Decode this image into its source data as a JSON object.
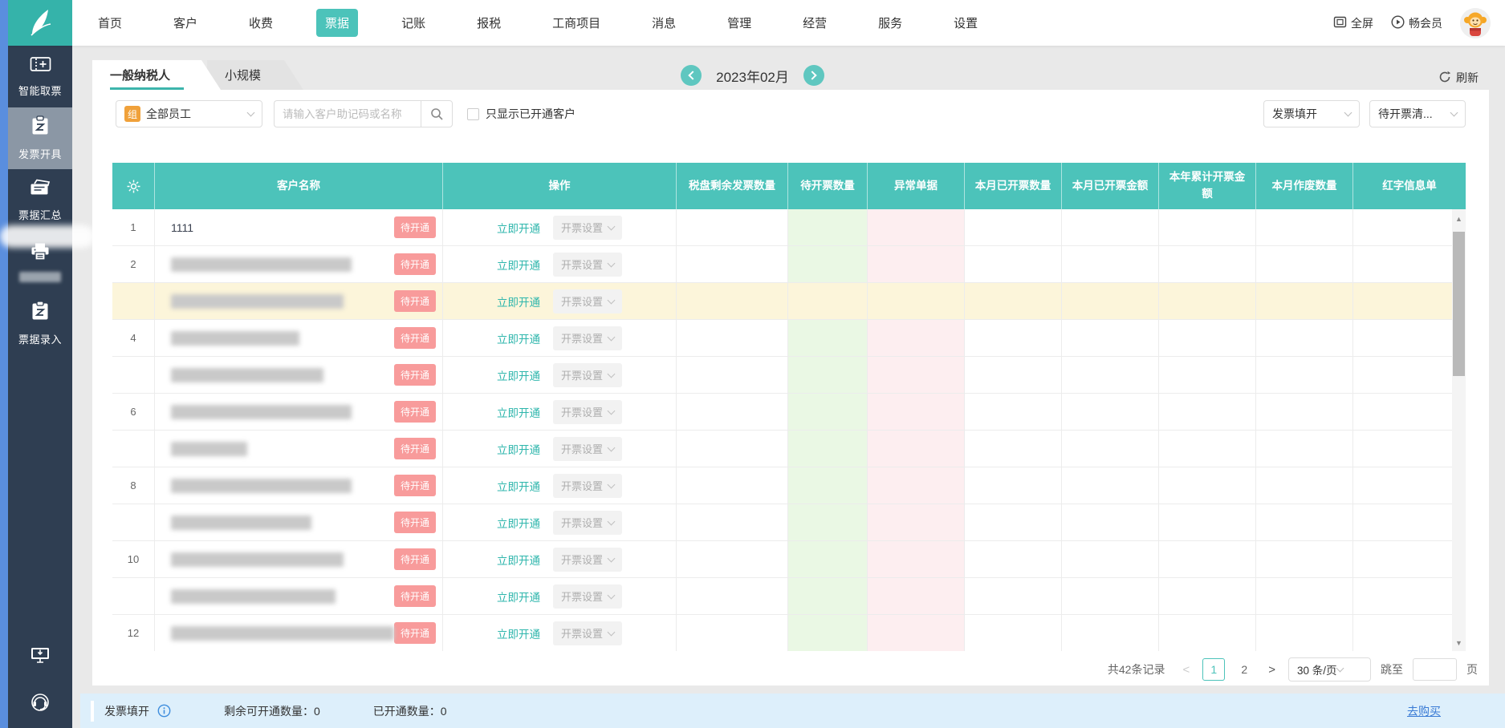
{
  "top_nav": {
    "items": [
      {
        "label": "首页"
      },
      {
        "label": "客户"
      },
      {
        "label": "收费"
      },
      {
        "label": "票据",
        "active": true
      },
      {
        "label": "记账"
      },
      {
        "label": "报税"
      },
      {
        "label": "工商项目"
      },
      {
        "label": "消息"
      },
      {
        "label": "管理"
      },
      {
        "label": "经营"
      },
      {
        "label": "服务"
      },
      {
        "label": "设置"
      }
    ],
    "fullscreen_label": "全屏",
    "member_label": "畅会员"
  },
  "sidebar": {
    "items": [
      {
        "label": "智能取票",
        "icon": "ticket-plus"
      },
      {
        "label": "发票开具",
        "icon": "invoice-clipboard",
        "active": true
      },
      {
        "label": "票据汇总",
        "icon": "bills-stack"
      },
      {
        "label": "",
        "icon": "printer",
        "redacted": true
      },
      {
        "label": "票据录入",
        "icon": "entry-clipboard"
      }
    ]
  },
  "tabs": {
    "general": "一般纳税人",
    "small": "小规模"
  },
  "period": {
    "label": "2023年02月"
  },
  "refresh_label": "刷新",
  "filters": {
    "employee_badge": "组",
    "employee_value": "全部员工",
    "search_placeholder": "请输入客户助记码或名称",
    "checkbox_label": "只显示已开通客户",
    "invoice_mode": "发票填开",
    "list_mode": "待开票清..."
  },
  "table": {
    "headers": [
      {
        "label": "客户名称"
      },
      {
        "label": "操作"
      },
      {
        "label": "税盘剩余发票数量"
      },
      {
        "label": "待开票数量"
      },
      {
        "label": "异常单据"
      },
      {
        "label": "本月已开票数量"
      },
      {
        "label": "本月已开票金额"
      },
      {
        "label": "本年累计开票金额"
      },
      {
        "label": "本月作废数量"
      },
      {
        "label": "红字信息单"
      }
    ],
    "badge_label": "待开通",
    "actions": {
      "open": "立即开通",
      "settings": "开票设置"
    },
    "rows": [
      {
        "num": "1",
        "name": "1111",
        "redacted": false,
        "highlight": false,
        "redact_w": 0
      },
      {
        "num": "2",
        "name": "",
        "redacted": true,
        "highlight": false,
        "redact_w": 225
      },
      {
        "num": "",
        "name": "",
        "redacted": true,
        "highlight": true,
        "redact_w": 215
      },
      {
        "num": "4",
        "name": "",
        "redacted": true,
        "highlight": false,
        "redact_w": 160
      },
      {
        "num": "",
        "name": "",
        "redacted": true,
        "highlight": false,
        "redact_w": 190
      },
      {
        "num": "6",
        "name": "",
        "redacted": true,
        "highlight": false,
        "redact_w": 225
      },
      {
        "num": "",
        "name": "",
        "redacted": true,
        "highlight": false,
        "redact_w": 95
      },
      {
        "num": "8",
        "name": "",
        "redacted": true,
        "highlight": false,
        "redact_w": 225
      },
      {
        "num": "",
        "name": "",
        "redacted": true,
        "highlight": false,
        "redact_w": 175
      },
      {
        "num": "10",
        "name": "",
        "redacted": true,
        "highlight": false,
        "redact_w": 215
      },
      {
        "num": "",
        "name": "",
        "redacted": true,
        "highlight": false,
        "redact_w": 205
      },
      {
        "num": "12",
        "name": "",
        "redacted": true,
        "highlight": false,
        "redact_w": 280
      }
    ]
  },
  "pagination": {
    "total": "共42条记录",
    "pages": [
      "1",
      "2"
    ],
    "current": "1",
    "per_page": "30 条/页",
    "jump_label": "跳至",
    "jump_value": "",
    "jump_unit": "页"
  },
  "footer": {
    "title": "发票填开",
    "remaining_label": "剩余可开通数量：",
    "remaining_value": "0",
    "opened_label": "已开通数量：",
    "opened_value": "0",
    "buy_label": "去购买"
  },
  "colors": {
    "accent_teal": "#4cc3ba",
    "sidebar_navy": "#2f3e52",
    "left_strip_blue": "#5a8ede",
    "badge_pink": "#f89b9b",
    "col_green": "#eaf8e4",
    "col_pink": "#fdeef0",
    "row_highlight": "#fcf5da",
    "footer_blue": "#ddeffb",
    "buy_link_blue": "#3a7bd5"
  }
}
